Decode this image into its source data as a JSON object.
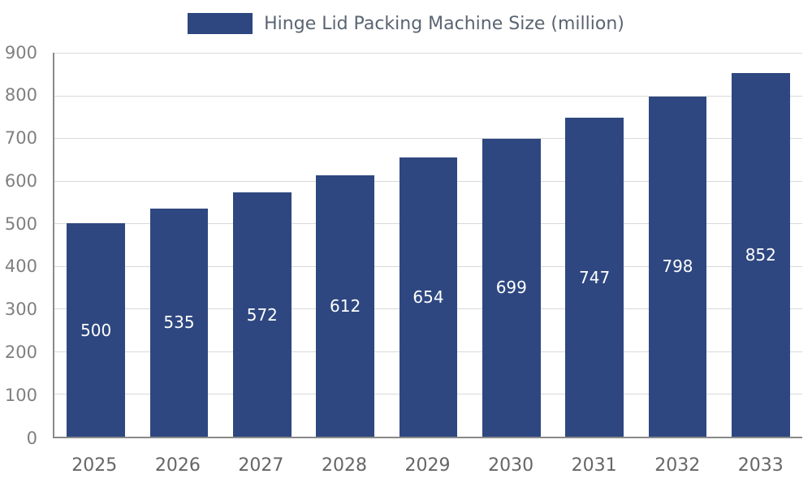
{
  "chart_data": {
    "type": "bar",
    "title": "Hinge Lid Packing Machine Size (million)",
    "categories": [
      "2025",
      "2026",
      "2027",
      "2028",
      "2029",
      "2030",
      "2031",
      "2032",
      "2033"
    ],
    "values": [
      500,
      535,
      572,
      612,
      654,
      699,
      747,
      798,
      852
    ],
    "xlabel": "",
    "ylabel": "",
    "ylim": [
      0,
      900
    ],
    "ytick_step": 100,
    "grid": "horizontal",
    "legend_position": "top-center",
    "bar_color": "#2e4780",
    "value_label_color": "#ffffff",
    "axis_label_color": "#7f7f7f",
    "grid_color": "#d9d9d9"
  }
}
